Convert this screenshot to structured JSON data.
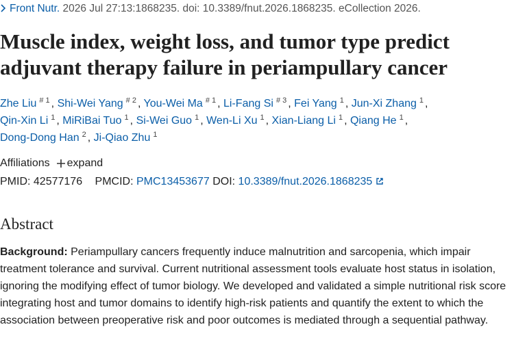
{
  "citation": {
    "journal": "Front Nutr.",
    "details": "2026 Jul 27:13:1868235. doi: 10.3389/fnut.2026.1868235. eCollection 2026."
  },
  "title": "Muscle index, weight loss, and tumor type predict adjuvant therapy failure in periampullary cancer",
  "authors": {
    "separator": ",",
    "list": [
      {
        "name": "Zhe Liu",
        "sup": "# 1"
      },
      {
        "name": "Shi-Wei Yang",
        "sup": "# 2"
      },
      {
        "name": "You-Wei Ma",
        "sup": "# 1"
      },
      {
        "name": "Li-Fang Si",
        "sup": "# 3"
      },
      {
        "name": "Fei Yang",
        "sup": "1"
      },
      {
        "name": "Jun-Xi Zhang",
        "sup": "1"
      },
      {
        "name": "Qin-Xin Li",
        "sup": "1"
      },
      {
        "name": "MiRiBai Tuo",
        "sup": "1"
      },
      {
        "name": "Si-Wei Guo",
        "sup": "1"
      },
      {
        "name": "Wen-Li Xu",
        "sup": "1"
      },
      {
        "name": "Xian-Liang Li",
        "sup": "1"
      },
      {
        "name": "Qiang He",
        "sup": "1"
      },
      {
        "name": "Dong-Dong Han",
        "sup": "2"
      },
      {
        "name": "Ji-Qiao Zhu",
        "sup": "1"
      }
    ]
  },
  "affiliations": {
    "label": "Affiliations",
    "toggle": "expand"
  },
  "identifiers": {
    "pmid_label": "PMID:",
    "pmid": "42577176",
    "pmcid_label": "PMCID:",
    "pmcid": "PMC13453677",
    "doi_label": "DOI:",
    "doi": "10.3389/fnut.2026.1868235"
  },
  "abstract": {
    "heading": "Abstract",
    "label": "Background:",
    "text": "Periampullary cancers frequently induce malnutrition and sarcopenia, which impair treatment tolerance and survival. Current nutritional assessment tools evaluate host status in isolation, ignoring the modifying effect of tumor biology. We developed and validated a simple nutritional risk score integrating host and tumor domains to identify high-risk patients and quantify the extent to which the association between preoperative risk and poor outcomes is mediated through a sequential pathway."
  }
}
